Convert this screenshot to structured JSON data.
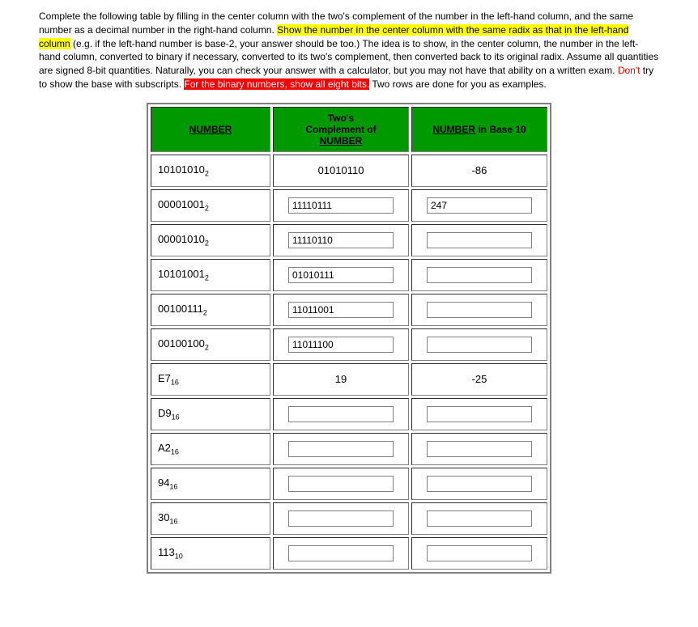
{
  "instructions": {
    "p1": "Complete the following table by filling in the center column with the two's complement of the number in the left-hand column, and the same number as a decimal number in the right-hand column. ",
    "hl1": "Show the number in the center column with the same radix as that in the left-hand column",
    "p2": " (e.g. if the left-hand number is base-2, your answer should be too.) The idea is to show, in the center column, the number in the left-hand column, converted to binary if necessary, converted to its two's complement, then converted back to its original radix. Assume all quantities are signed 8-bit quantities. Naturally, you can check your answer with a calculator, but you may not have that ability on a written exam. ",
    "red1": "Don't",
    "p3": " try to show the base with subscripts. ",
    "hl2": "For the binary numbers, show all eight bits.",
    "p4": " Two rows are done for you as examples."
  },
  "headers": {
    "col1": "NUMBER",
    "col2_l1": "Two's",
    "col2_l2": "Complement of",
    "col2_l3": "NUMBER",
    "col3_l1": "NUMBER",
    "col3_l2": " in Base 10"
  },
  "rows": [
    {
      "num": "10101010",
      "sub": "2",
      "comp_static": "01010110",
      "b10_static": "-86"
    },
    {
      "num": "00001001",
      "sub": "2",
      "comp_val": "11110111",
      "b10_val": "247"
    },
    {
      "num": "00001010",
      "sub": "2",
      "comp_val": "11110110",
      "b10_val": ""
    },
    {
      "num": "10101001",
      "sub": "2",
      "comp_val": "01010111",
      "b10_val": ""
    },
    {
      "num": "00100111",
      "sub": "2",
      "comp_val": "11011001",
      "b10_val": ""
    },
    {
      "num": "00100100",
      "sub": "2",
      "comp_val": "11011100",
      "b10_val": ""
    },
    {
      "num": "E7",
      "sub": "16",
      "comp_static": "19",
      "b10_static": "-25"
    },
    {
      "num": "D9",
      "sub": "16",
      "comp_val": "",
      "b10_val": ""
    },
    {
      "num": "A2",
      "sub": "16",
      "comp_val": "",
      "b10_val": ""
    },
    {
      "num": "94",
      "sub": "16",
      "comp_val": "",
      "b10_val": ""
    },
    {
      "num": "30",
      "sub": "16",
      "comp_val": "",
      "b10_val": ""
    },
    {
      "num": "113",
      "sub": "10",
      "comp_val": "",
      "b10_val": ""
    }
  ]
}
